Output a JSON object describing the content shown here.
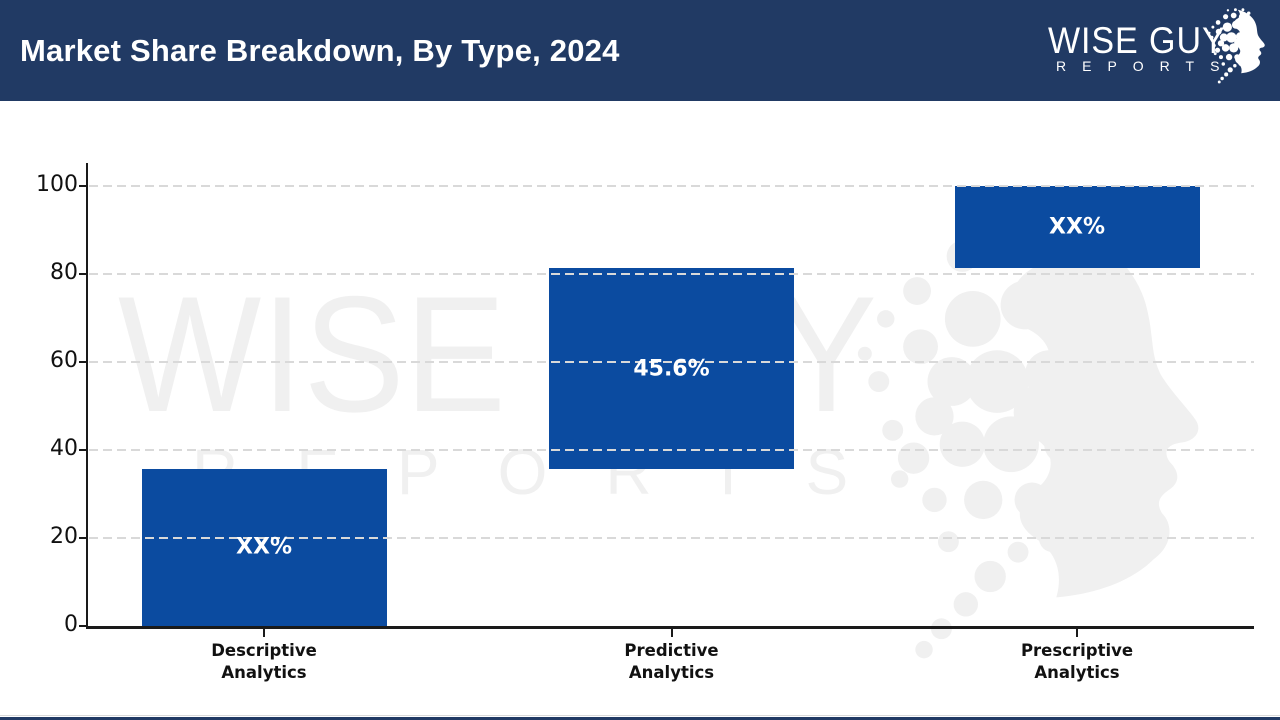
{
  "header": {
    "title": "Market Share Breakdown, By Type, 2024",
    "logo": {
      "line1": "WISE GUY",
      "line2": "REPORTS"
    }
  },
  "watermark": {
    "line1": "WISE GUY",
    "line2": "REPORTS"
  },
  "chart_data": {
    "type": "bar",
    "subtype": "waterfall",
    "title": "Market Share Breakdown, By Type, 2024",
    "categories": [
      "Descriptive Analytics",
      "Predictive Analytics",
      "Prescriptive Analytics"
    ],
    "bars": [
      {
        "category": "Descriptive Analytics",
        "start": 0,
        "end": 35.7,
        "label": "XX%"
      },
      {
        "category": "Predictive Analytics",
        "start": 35.7,
        "end": 81.3,
        "label": "45.6%"
      },
      {
        "category": "Prescriptive Analytics",
        "start": 81.3,
        "end": 100,
        "label": "XX%"
      }
    ],
    "yticks": [
      0,
      20,
      40,
      60,
      80,
      100
    ],
    "ylim": [
      0,
      105
    ],
    "xlabel": "",
    "ylabel": "",
    "grid": "horizontal-dashed",
    "legend": "none",
    "bar_color": "#0b4ba0",
    "value_label_color": "#ffffff"
  },
  "colors": {
    "header_navy": "#213a64",
    "bar_blue": "#0b4ba0",
    "grid_gray": "#d9d9d9",
    "watermark_gray": "#f0f0f0",
    "axis_black": "#1a1a1a",
    "text_dark": "#111111",
    "title_white": "#ffffff"
  }
}
